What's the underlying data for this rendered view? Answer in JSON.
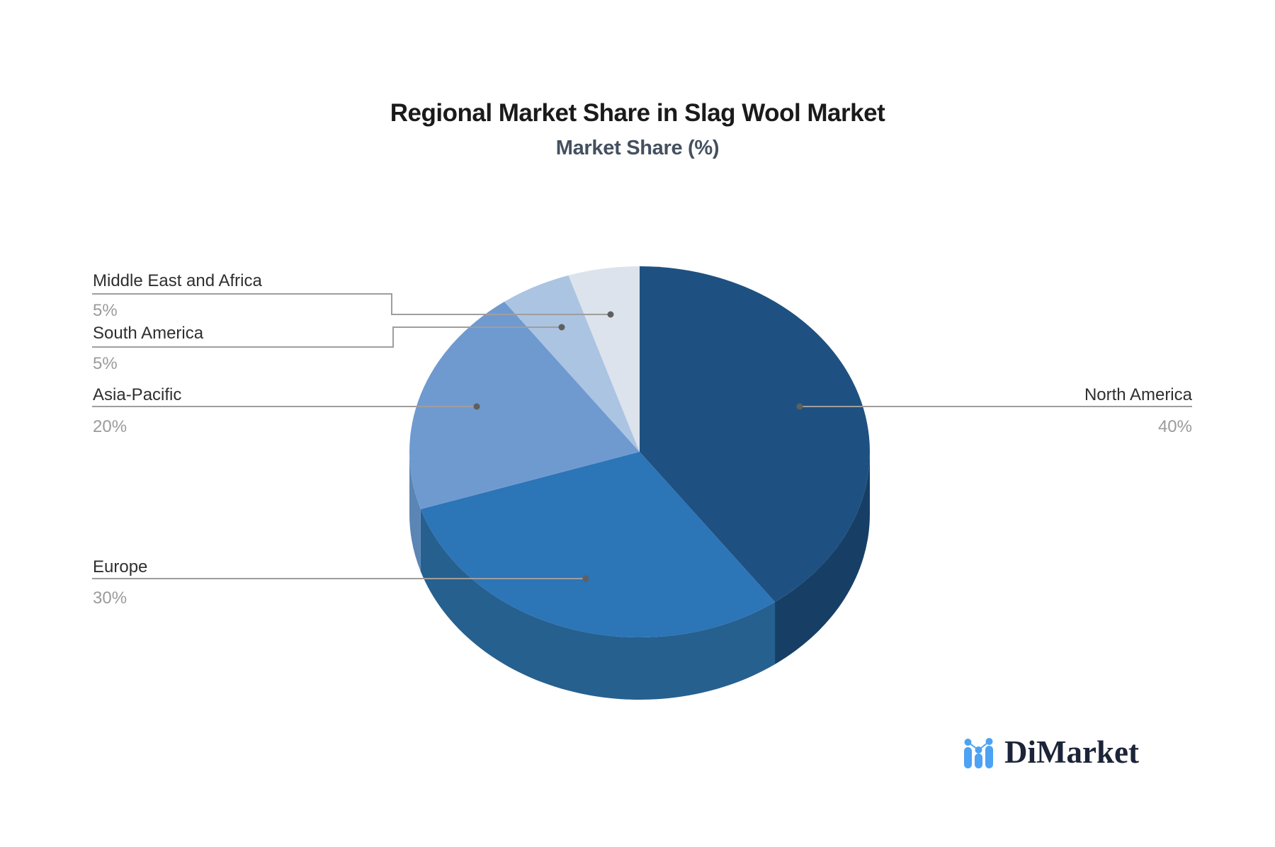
{
  "title": "Regional Market Share in Slag Wool Market",
  "subtitle": "Market Share (%)",
  "brand": {
    "name": "DiMarket"
  },
  "colors": {
    "title_text": "#1a1a1a",
    "subtitle_text": "#44505f",
    "label_text": "#2f2f2f",
    "percent_text": "#9b9b9b",
    "leader_line": "#9e9e9e",
    "callout_dot": "#5f5f5f",
    "logo_blue": "#4da2f3",
    "logo_text": "#1b2438"
  },
  "chart_data": {
    "type": "pie",
    "title": "Regional Market Share in Slag Wool Market",
    "subtitle": "Market Share (%)",
    "unit": "%",
    "style": "3d-pie, starts at 12 o'clock, clockwise",
    "legend_position": "callout-labels",
    "slices": [
      {
        "label": "North America",
        "value": 40,
        "display": "40%",
        "color": "#1e5181",
        "side_color": "#173f66"
      },
      {
        "label": "Europe",
        "value": 30,
        "display": "30%",
        "color": "#2c75b7",
        "side_color": "#26608f"
      },
      {
        "label": "Asia-Pacific",
        "value": 20,
        "display": "20%",
        "color": "#6f9ad0",
        "side_color": "#5b85b5"
      },
      {
        "label": "South America",
        "value": 5,
        "display": "5%",
        "color": "#abc4e2",
        "side_color": "#92abc9"
      },
      {
        "label": "Middle East and Africa",
        "value": 5,
        "display": "5%",
        "color": "#dce3ec",
        "side_color": "#c2cbd8"
      }
    ]
  }
}
